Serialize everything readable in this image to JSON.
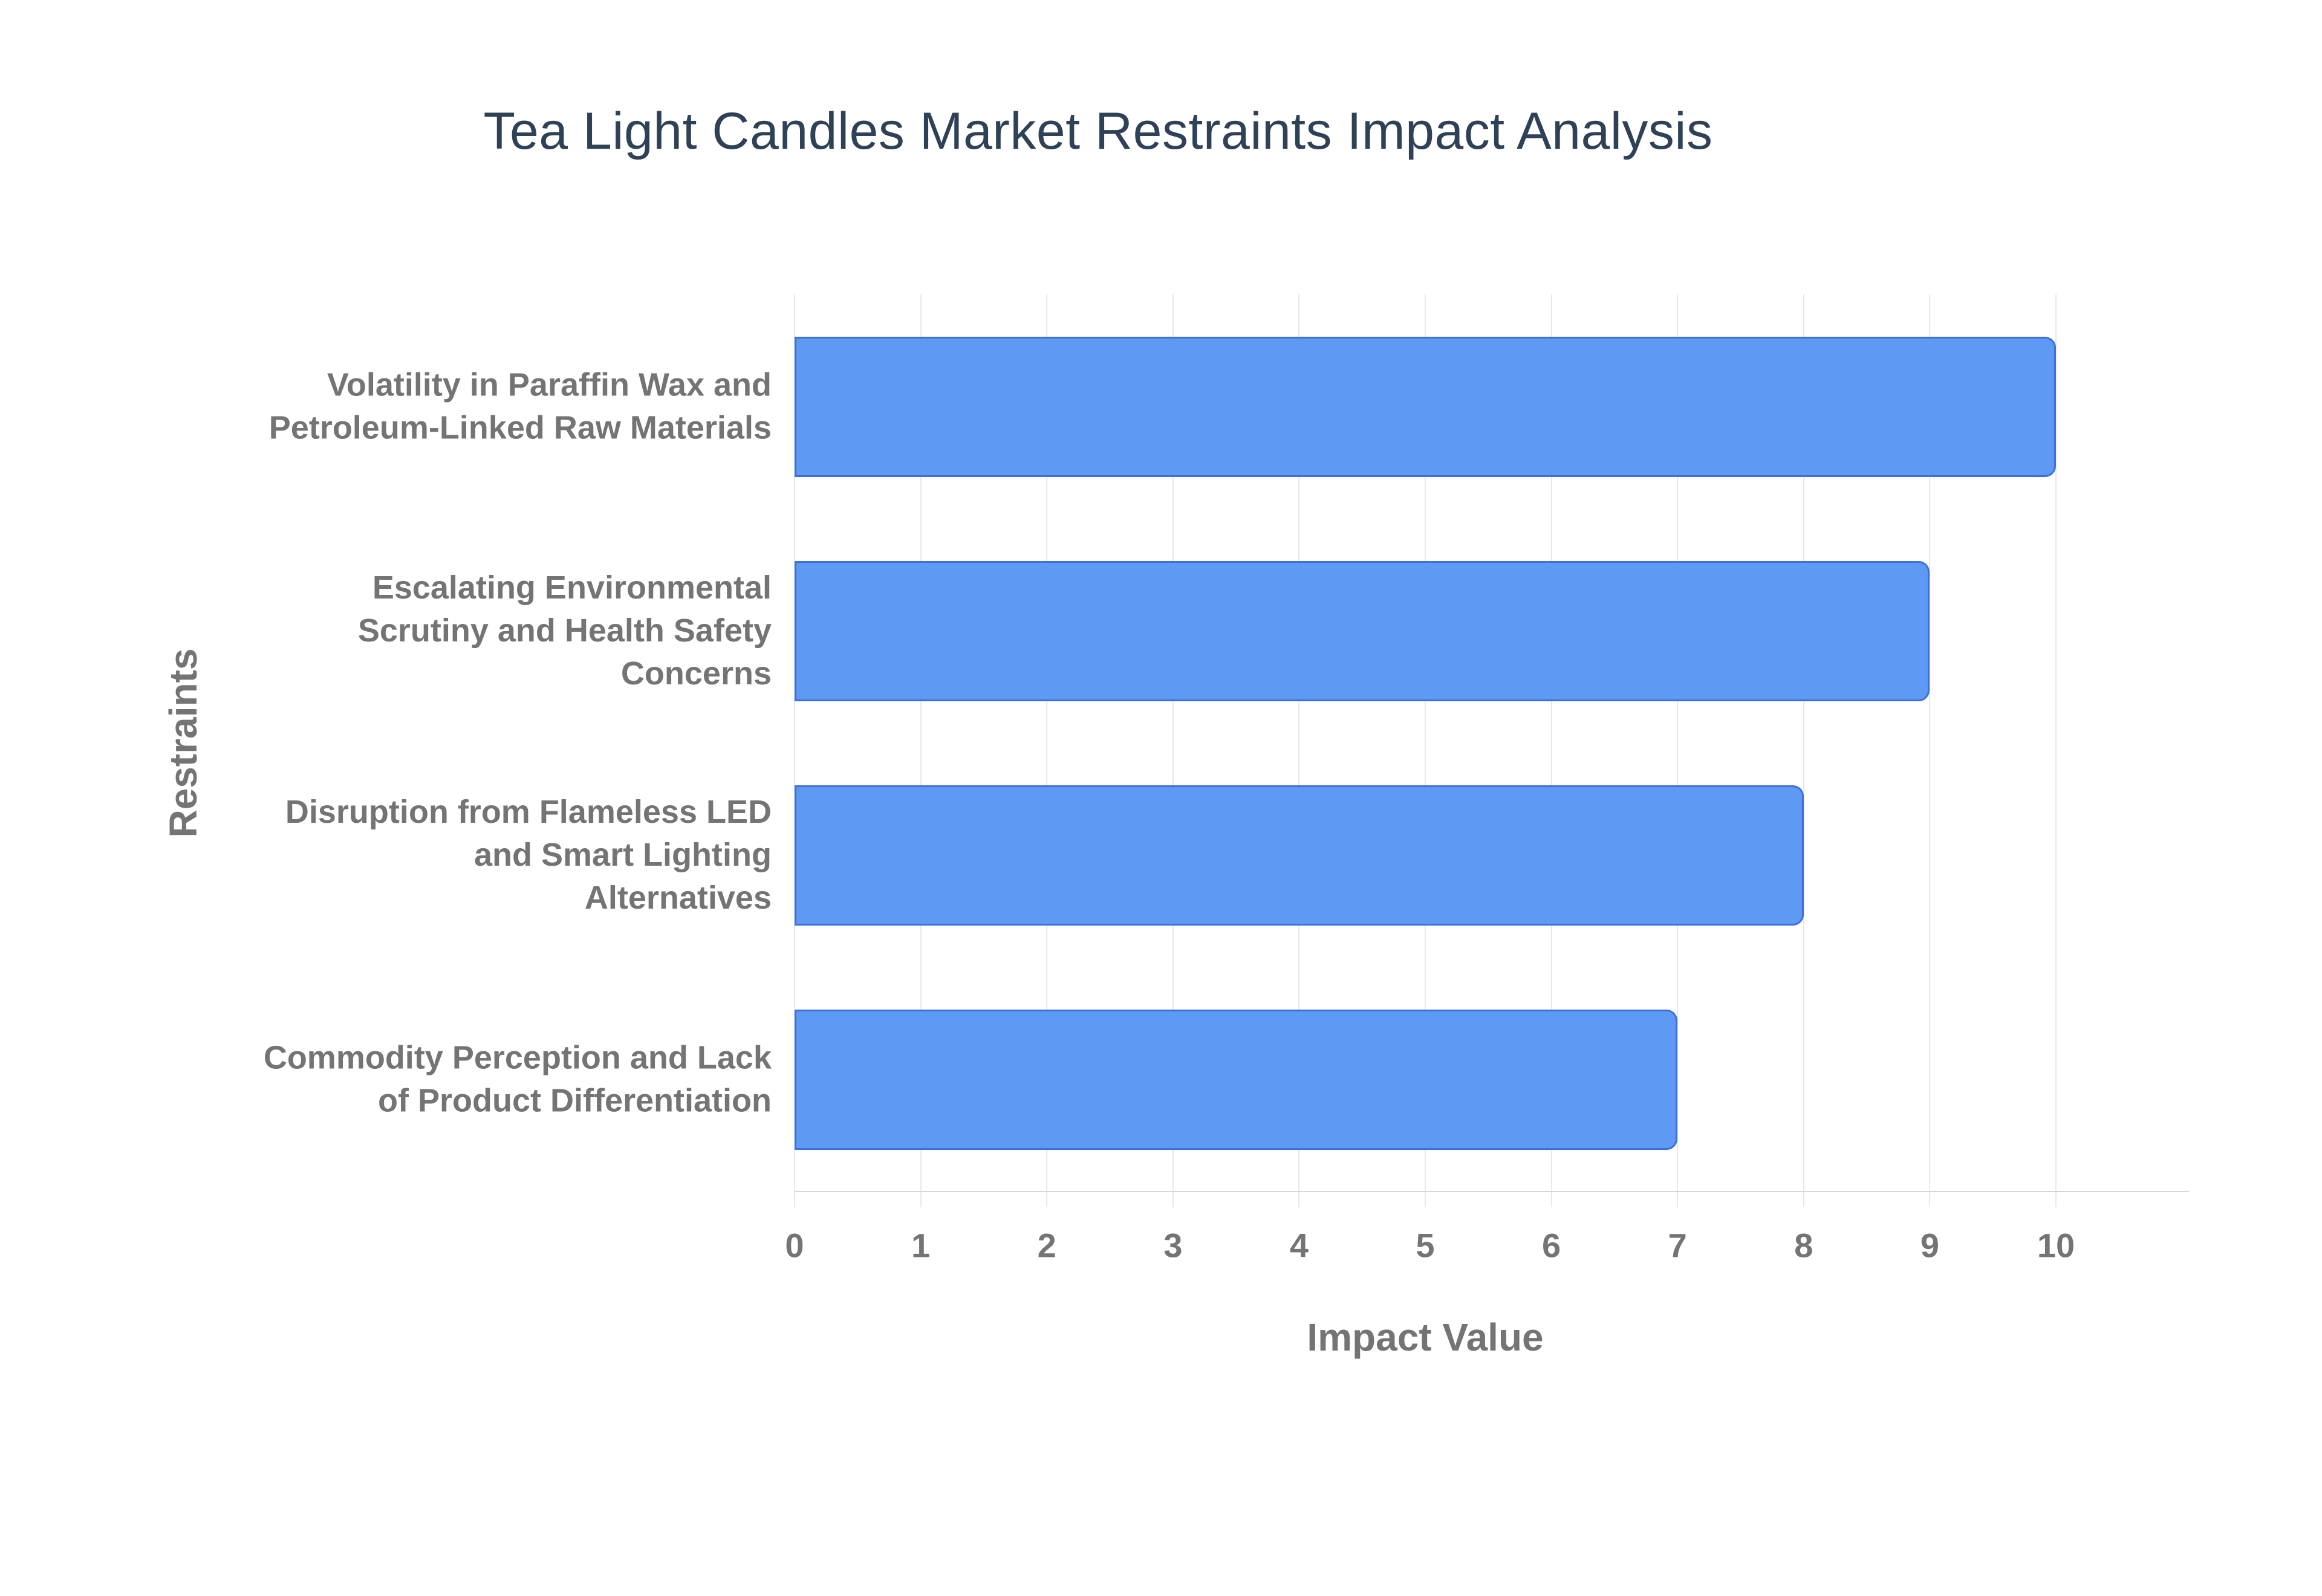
{
  "page": {
    "title": "Tea Light Candles Market Restraints Impact Analysis"
  },
  "chart_data": {
    "type": "bar",
    "orientation": "horizontal",
    "title": "Tea Light Candles Market Restraints Impact Analysis",
    "categories": [
      "Volatility in Paraffin Wax and\nPetroleum-Linked Raw Materials",
      "Escalating Environmental\nScrutiny and Health Safety\nConcerns",
      "Disruption from Flameless LED\nand Smart Lighting\nAlternatives",
      "Commodity Perception and Lack\nof Product Differentiation"
    ],
    "values": [
      10,
      9,
      8,
      7
    ],
    "xlabel": "Impact Value",
    "ylabel": "Restraints",
    "xlim": [
      0,
      10
    ],
    "xticks": [
      0,
      1,
      2,
      3,
      4,
      5,
      6,
      7,
      8,
      9,
      10
    ],
    "grid": true,
    "legend": "none",
    "colors": {
      "bar_fill": "#5E9AF4",
      "bar_border": "#3D70DC",
      "title_text": "#2E4156",
      "axis_text": "#747474",
      "gridline": "#E8E8E8",
      "axis_line": "#D6D6D6",
      "background": "#FFFFFF"
    }
  }
}
